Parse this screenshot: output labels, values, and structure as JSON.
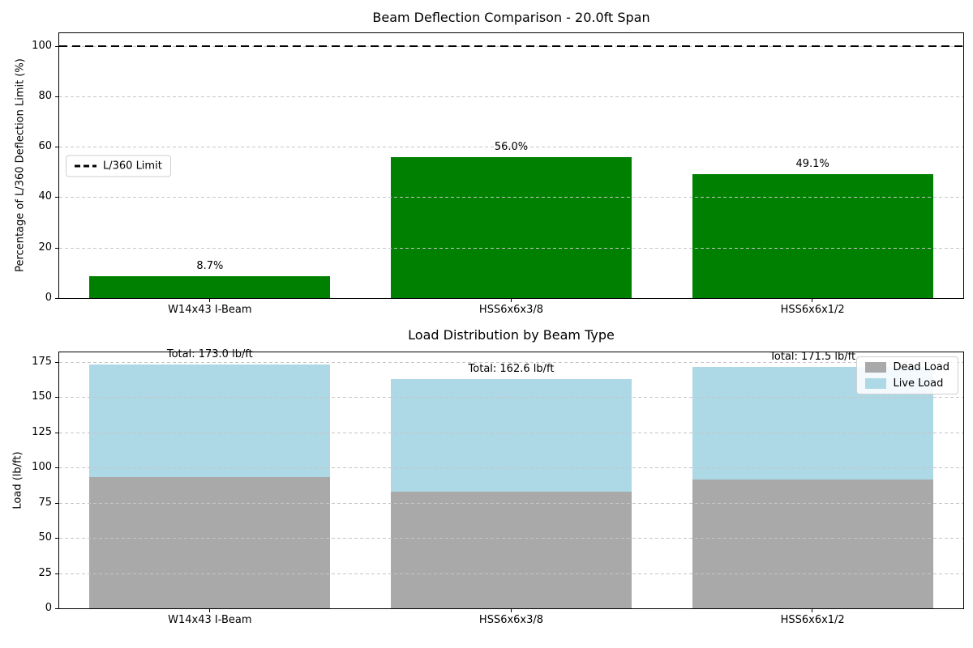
{
  "figure": {
    "background": "#ffffff",
    "text_color": "#000000"
  },
  "chart_data": [
    {
      "type": "bar",
      "title": "Beam Deflection Comparison - 20.0ft Span",
      "xlabel": "",
      "ylabel": "Percentage of L/360 Deflection Limit (%)",
      "categories": [
        "W14x43 I-Beam",
        "HSS6x6x3/8",
        "HSS6x6x1/2"
      ],
      "values": [
        8.7,
        56.0,
        49.1
      ],
      "bar_labels": [
        "8.7%",
        "56.0%",
        "49.1%"
      ],
      "bar_color": "#008000",
      "yticks": [
        0,
        20,
        40,
        60,
        80,
        100
      ],
      "ylim": [
        0,
        105
      ],
      "grid": "dashed-horizontal",
      "reference_line": {
        "value": 100,
        "label": "L/360 Limit",
        "color": "#000000",
        "style": "dashed"
      },
      "legend": {
        "position": "center-left",
        "entries": [
          {
            "label": "L/360 Limit",
            "swatch": "dashed-line",
            "color": "#000000"
          }
        ]
      }
    },
    {
      "type": "stacked-bar",
      "title": "Load Distribution by Beam Type",
      "xlabel": "",
      "ylabel": "Load (lb/ft)",
      "categories": [
        "W14x43 I-Beam",
        "HSS6x6x3/8",
        "HSS6x6x1/2"
      ],
      "series": [
        {
          "name": "Dead Load",
          "values": [
            93.0,
            82.6,
            91.5
          ],
          "color": "#A9A9A9"
        },
        {
          "name": "Live Load",
          "values": [
            80.0,
            80.0,
            80.0
          ],
          "color": "#ADD8E6"
        }
      ],
      "totals": [
        173.0,
        162.6,
        171.5
      ],
      "total_labels": [
        "Total: 173.0 lb/ft",
        "Total: 162.6 lb/ft",
        "Total: 171.5 lb/ft"
      ],
      "yticks": [
        0,
        25,
        50,
        75,
        100,
        125,
        150,
        175
      ],
      "ylim": [
        0,
        181.65
      ],
      "grid": "dashed-horizontal",
      "legend": {
        "position": "top-right",
        "entries": [
          {
            "label": "Dead Load",
            "swatch": "patch",
            "color": "#A9A9A9"
          },
          {
            "label": "Live Load",
            "swatch": "patch",
            "color": "#ADD8E6"
          }
        ]
      }
    }
  ]
}
